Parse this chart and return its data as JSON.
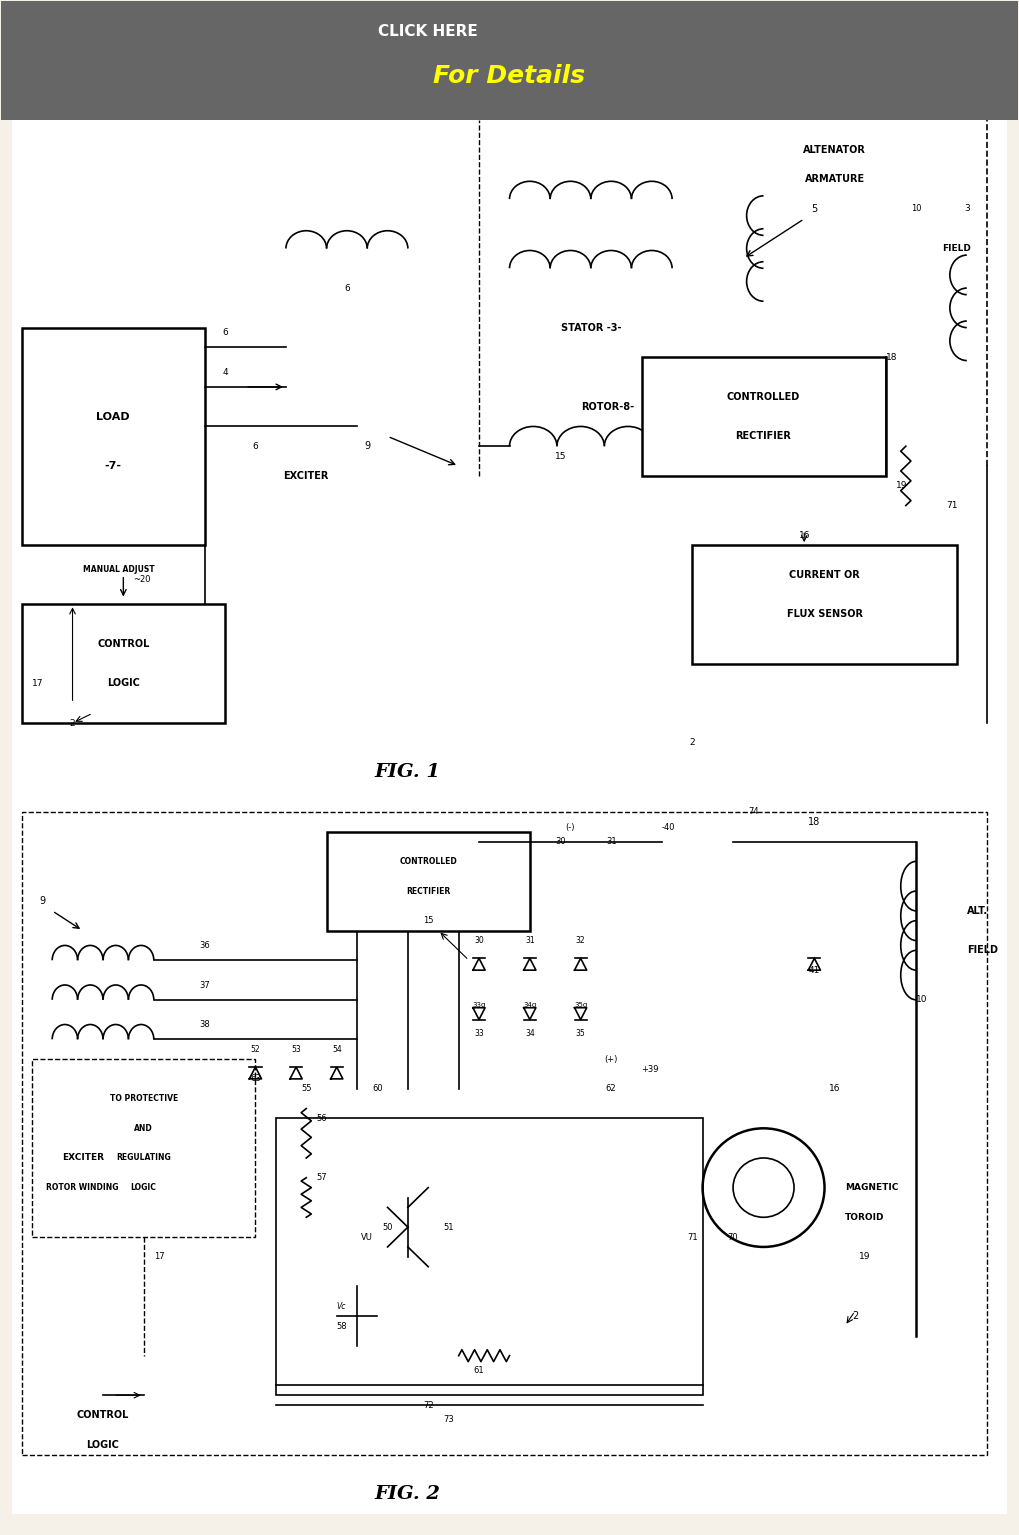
{
  "bg_color": "#f5f0e8",
  "header_bg": "#555555",
  "header_text1": "CLICK HERE",
  "header_text2": "For Details",
  "title1": "FIG. 1",
  "title2": "FIG. 2",
  "fig_width": 10.19,
  "fig_height": 15.35,
  "dpi": 100
}
